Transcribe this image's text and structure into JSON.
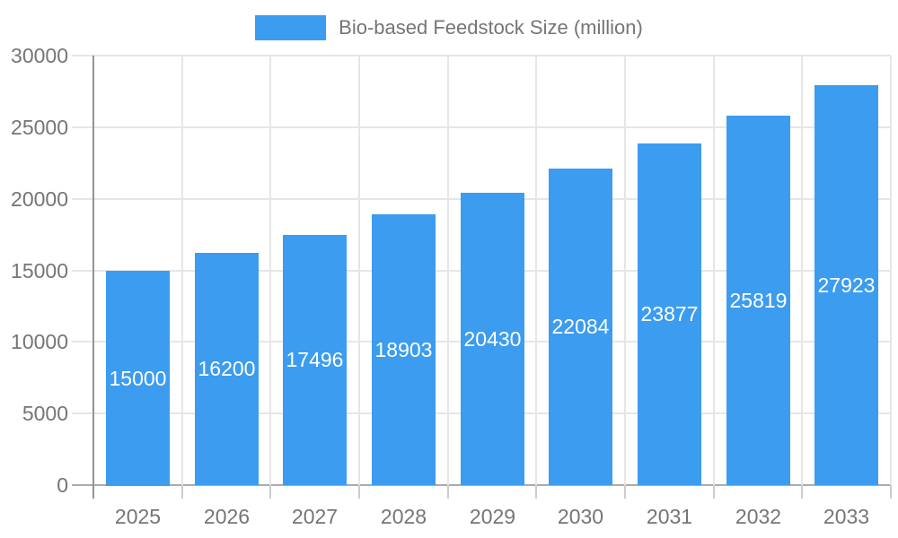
{
  "chart_data": {
    "type": "bar",
    "title": "Bio-based Feedstock Size (million)",
    "legend_position": "top",
    "categories": [
      "2025",
      "2026",
      "2027",
      "2028",
      "2029",
      "2030",
      "2031",
      "2032",
      "2033"
    ],
    "series": [
      {
        "name": "Bio-based Feedstock Size (million)",
        "values": [
          15000,
          16200,
          17496,
          18903,
          20430,
          22084,
          23877,
          25819,
          27923
        ]
      }
    ],
    "xlabel": "",
    "ylabel": "",
    "ylim": [
      0,
      30000
    ],
    "y_ticks": [
      0,
      5000,
      10000,
      15000,
      20000,
      25000,
      30000
    ],
    "grid": "on",
    "value_labels": "inside-bars-centered",
    "colors": {
      "bar": "#3c9cef",
      "value_label_text": "#ffffff",
      "axis_text": "#757575",
      "gridline": "#e6e6e6",
      "x_axis_line": "#ababab",
      "y_axis_line": "#949494",
      "tick": "#cccccc"
    }
  }
}
